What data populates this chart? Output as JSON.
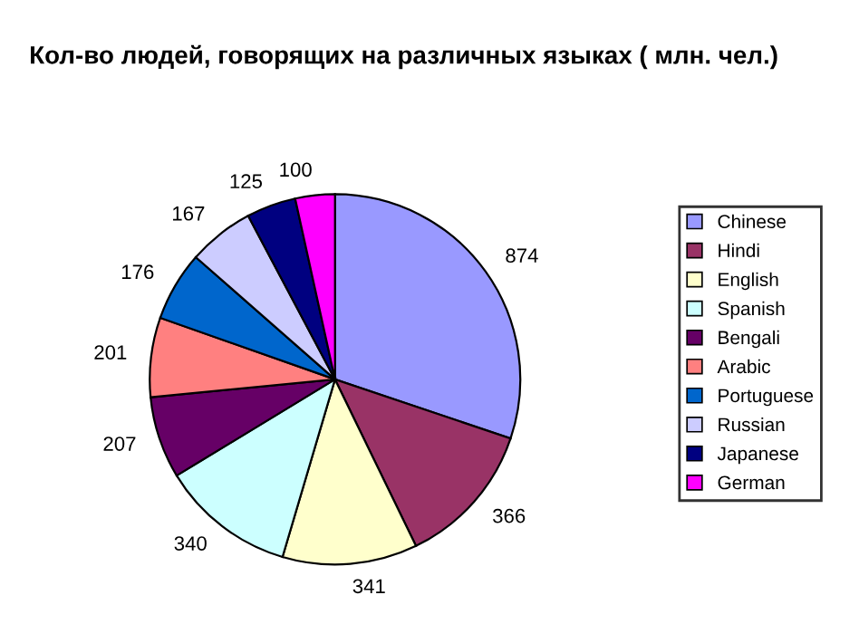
{
  "chart_data": {
    "type": "pie",
    "title": "Кол-во людей, говорящих на различных языках ( млн. чел.)",
    "categories": [
      "Chinese",
      "Hindi",
      "English",
      "Spanish",
      "Bengali",
      "Arabic",
      "Portuguese",
      "Russian",
      "Japanese",
      "German"
    ],
    "values": [
      874,
      366,
      341,
      340,
      207,
      201,
      176,
      167,
      125,
      100
    ],
    "colors": [
      "#9999ff",
      "#993366",
      "#ffffcc",
      "#ccffff",
      "#660066",
      "#ff8080",
      "#0066cc",
      "#ccccff",
      "#000080",
      "#ff00ff"
    ],
    "data_labels": true,
    "legend": "right"
  }
}
